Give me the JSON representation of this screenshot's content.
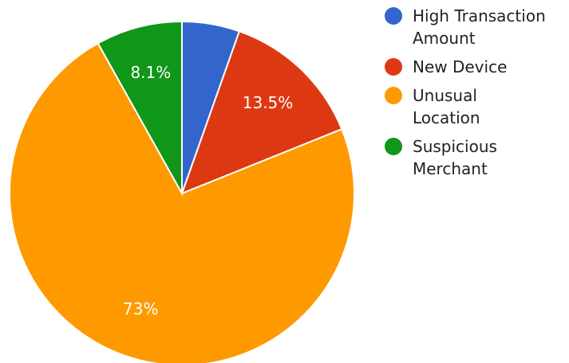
{
  "chart_data": {
    "type": "pie",
    "title": "",
    "legend_position": "right",
    "slices": [
      {
        "name": "High Transaction\nAmount",
        "value": 5.4,
        "color": "#3366cc",
        "label": ""
      },
      {
        "name": "New Device",
        "value": 13.5,
        "color": "#dc3912",
        "label": "13.5%"
      },
      {
        "name": "Unusual\nLocation",
        "value": 73,
        "color": "#ff9900",
        "label": "73%"
      },
      {
        "name": "Suspicious\nMerchant",
        "value": 8.1,
        "color": "#109618",
        "label": "8.1%"
      }
    ]
  }
}
